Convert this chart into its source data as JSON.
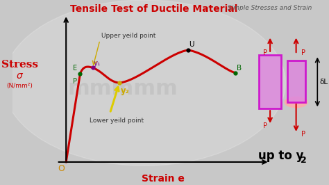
{
  "title": "Tensile Test of Ductile Material",
  "subtitle": "Simple Stresses and Strain",
  "bg_color": "#c8c8c8",
  "curve_color": "#cc0000",
  "title_color": "#cc0000",
  "stress_label": "Stress",
  "sigma_label": "σ",
  "units_label": "(N/mm²)",
  "strain_label": "Strain e",
  "origin_label": "O",
  "upper_yield_label": "Upper yeild point",
  "lower_yield_label": "Lower yeild point",
  "up_to_y2": "up to y",
  "watermark": "mmmm"
}
